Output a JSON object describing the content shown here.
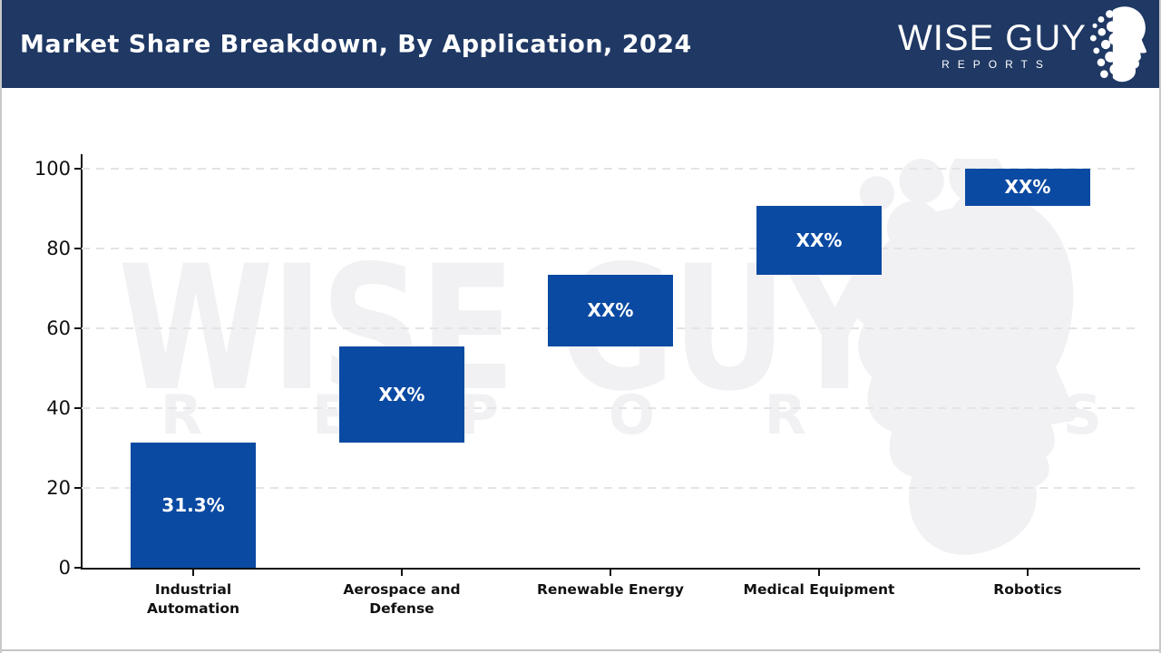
{
  "header": {
    "title": "Market Share Breakdown, By Application, 2024",
    "logo_line1": "WISE GUY",
    "logo_line2": "REPORTS"
  },
  "watermark": {
    "line1": "WISE GUY",
    "line2": "R E P O R T S"
  },
  "colors": {
    "header_bg": "#1f3864",
    "header_text": "#ffffff",
    "bar": "#0b4aa2",
    "bar_label": "#ffffff",
    "axis": "#111111",
    "grid": "#e4e4e4",
    "watermark": "#f1f1f4"
  },
  "chart_data": {
    "type": "bar",
    "subtype": "waterfall",
    "title": "Market Share Breakdown, By Application, 2024",
    "categories": [
      "Industrial Automation",
      "Aerospace and Defense",
      "Renewable Energy",
      "Medical Equipment",
      "Robotics"
    ],
    "x_tick_lines": [
      [
        "Industrial",
        "Automation"
      ],
      [
        "Aerospace and",
        "Defense"
      ],
      [
        "Renewable Energy"
      ],
      [
        "Medical Equipment"
      ],
      [
        "Robotics"
      ]
    ],
    "segments": [
      {
        "category": "Industrial Automation",
        "start": 0,
        "end": 31.3,
        "label": "31.3%"
      },
      {
        "category": "Aerospace and Defense",
        "start": 31.3,
        "end": 55.5,
        "label": "XX%"
      },
      {
        "category": "Renewable Energy",
        "start": 55.5,
        "end": 73.4,
        "label": "XX%"
      },
      {
        "category": "Medical Equipment",
        "start": 73.4,
        "end": 90.7,
        "label": "XX%"
      },
      {
        "category": "Robotics",
        "start": 90.7,
        "end": 100,
        "label": "XX%"
      }
    ],
    "y_ticks": [
      0,
      20,
      40,
      60,
      80,
      100
    ],
    "ylim": [
      0,
      104
    ],
    "xlabel": "",
    "ylabel": "",
    "grid": "horizontal-dashed",
    "legend": "none"
  }
}
